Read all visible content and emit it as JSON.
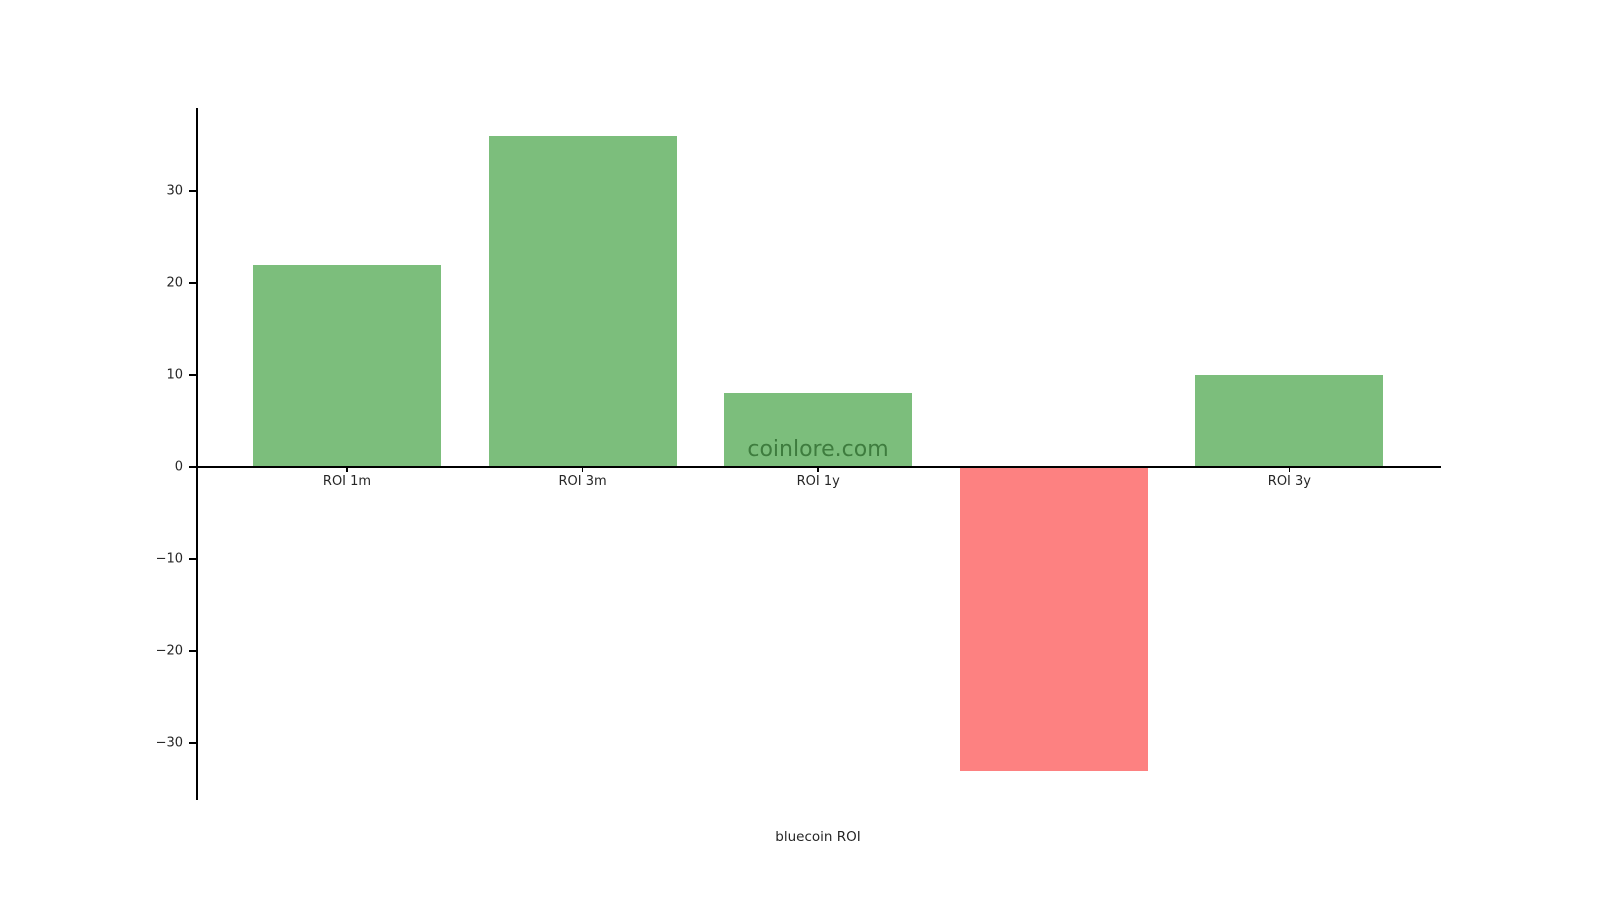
{
  "watermark": "coinlore.com",
  "xlabel": "bluecoin ROI",
  "colors": {
    "positive_bar": "#7cbe7c",
    "negative_bar": "#fd8181",
    "watermark": "#3e7c3e",
    "axis": "#000000",
    "text": "#262626",
    "background": "#ffffff"
  },
  "chart_data": {
    "type": "bar",
    "title": "bluecoin ROI",
    "categories": [
      "ROI 1m",
      "ROI 3m",
      "ROI 1y",
      "",
      "ROI 3y"
    ],
    "values": [
      22,
      36,
      8,
      -33,
      10
    ],
    "bar_color_keys": [
      "positive_bar",
      "positive_bar",
      "positive_bar",
      "negative_bar",
      "positive_bar"
    ],
    "yticks": [
      30,
      20,
      10,
      0,
      -10,
      -20,
      -30
    ],
    "yticklabels": [
      "30",
      "20",
      "10",
      "0",
      "−10",
      "−20",
      "−30"
    ],
    "ylim": [
      -36.5,
      39.5
    ],
    "xlabel": "bluecoin ROI",
    "grid": false,
    "legend": false,
    "annotations": [
      "coinlore.com"
    ]
  }
}
